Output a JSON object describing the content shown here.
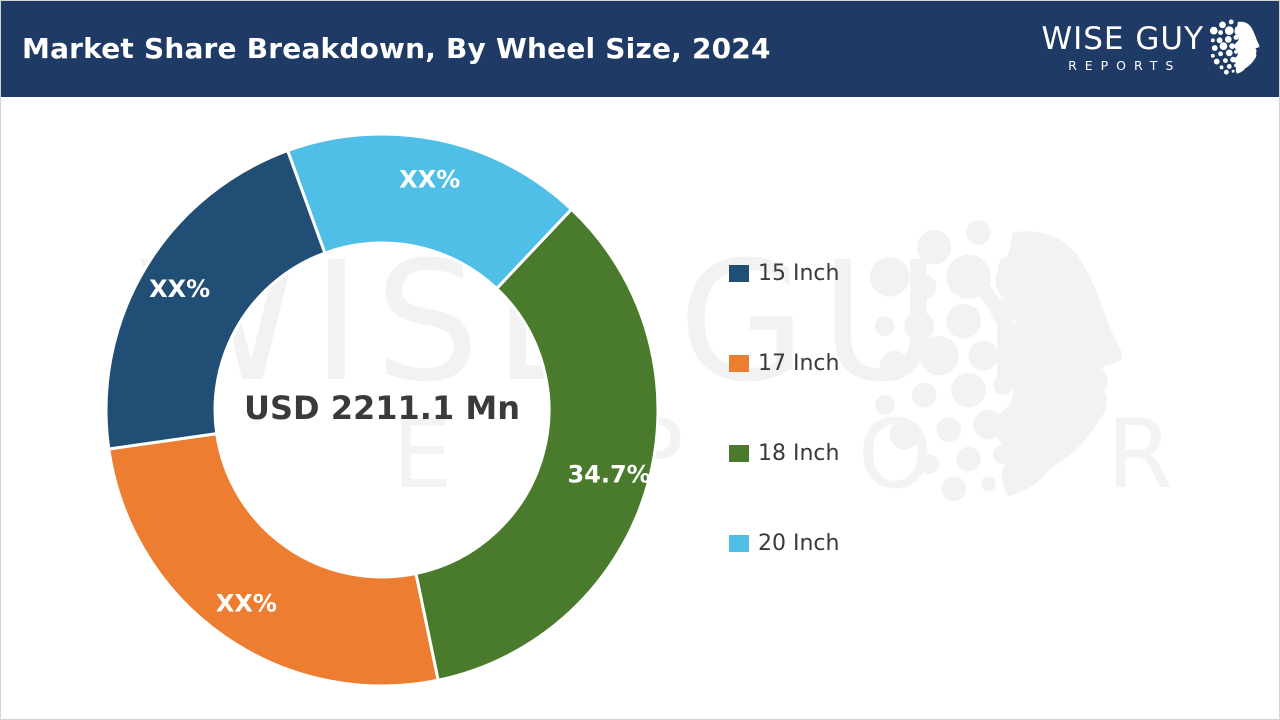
{
  "header": {
    "title": "Market Share Breakdown, By Wheel Size, 2024",
    "logo": {
      "line1": "WISE GUY",
      "line2": "REPORTS"
    }
  },
  "watermark": {
    "line1": "WISE GUY",
    "line2": "R E P O R T S"
  },
  "chart_data": {
    "type": "pie",
    "subtype": "donut",
    "title": "Market Share Breakdown, By Wheel Size, 2024",
    "center_label": "USD 2211.1 Mn",
    "start_angle_deg": 110,
    "direction": "clockwise",
    "segments": [
      {
        "name": "20 Inch",
        "value": 17.6,
        "display_label": "XX%",
        "color": "#4fbfe8"
      },
      {
        "name": "18 Inch",
        "value": 34.7,
        "display_label": "34.7%",
        "color": "#4a7a2b"
      },
      {
        "name": "17 Inch",
        "value": 26.0,
        "display_label": "XX%",
        "color": "#ed7d31"
      },
      {
        "name": "15 Inch",
        "value": 21.7,
        "display_label": "XX%",
        "color": "#204e74"
      }
    ],
    "legend_order": [
      "15 Inch",
      "17 Inch",
      "18 Inch",
      "20 Inch"
    ],
    "legend_position": "right"
  }
}
